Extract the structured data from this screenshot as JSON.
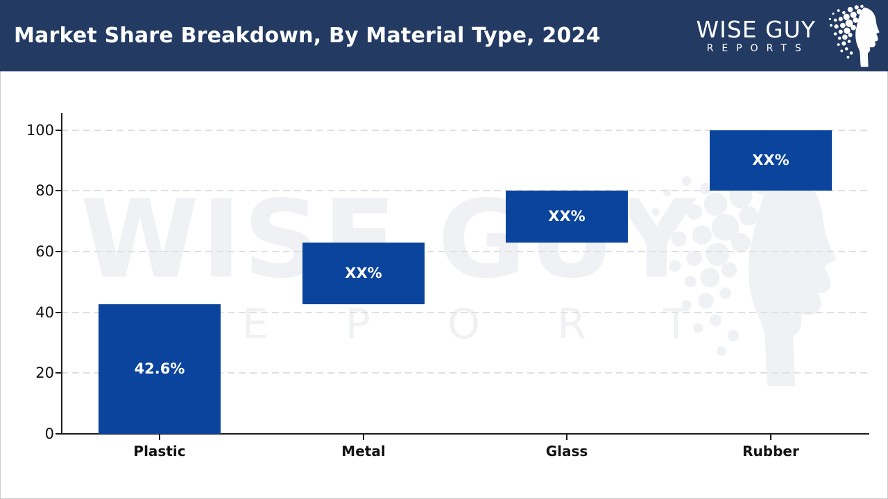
{
  "header": {
    "title": "Market Share Breakdown, By Material Type, 2024",
    "logo": {
      "line1": "WISE GUY",
      "line2": "REPORTS"
    }
  },
  "watermark": {
    "line1": "WISE GUY",
    "line2": "R E P O R T S"
  },
  "chart_data": {
    "type": "bar",
    "subtype": "waterfall",
    "title": "Market Share Breakdown, By Material Type, 2024",
    "categories": [
      "Plastic",
      "Metal",
      "Glass",
      "Rubber"
    ],
    "segments": [
      {
        "category": "Plastic",
        "from": 0,
        "to": 42.6,
        "label": "42.6%"
      },
      {
        "category": "Metal",
        "from": 42.6,
        "to": 63,
        "label": "XX%"
      },
      {
        "category": "Glass",
        "from": 63,
        "to": 80,
        "label": "XX%"
      },
      {
        "category": "Rubber",
        "from": 80,
        "to": 100,
        "label": "XX%"
      }
    ],
    "xlabel": "",
    "ylabel": "",
    "yticks": [
      0,
      20,
      40,
      60,
      80,
      100
    ],
    "ylim": [
      0,
      105
    ],
    "grid": "horizontal-dashed",
    "legend": "none",
    "bar_color": "#0a449c",
    "axis_color": "#1a1a1a",
    "grid_color": "#e0e0e0"
  },
  "colors": {
    "header_bg": "#233a63",
    "watermark": "#f0f1f4",
    "bar": "#0a449c"
  }
}
